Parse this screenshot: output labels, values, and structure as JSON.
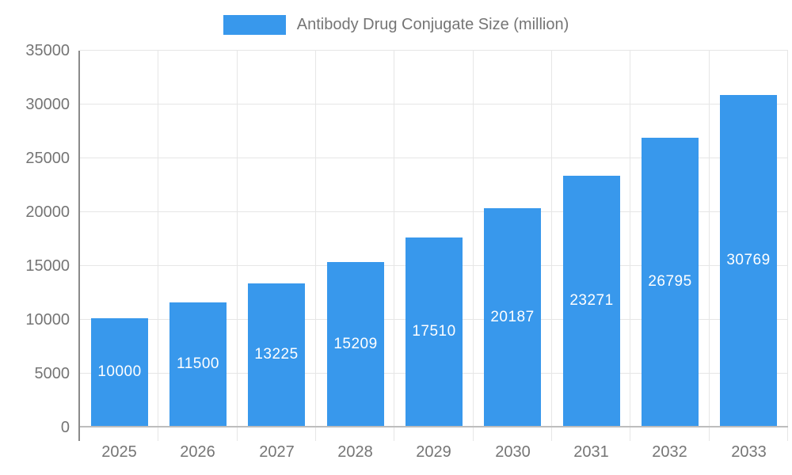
{
  "chart_data": {
    "type": "bar",
    "title": "Antibody Drug Conjugate Size (million)",
    "categories": [
      "2025",
      "2026",
      "2027",
      "2028",
      "2029",
      "2030",
      "2031",
      "2032",
      "2033"
    ],
    "values": [
      10000,
      11500,
      13225,
      15209,
      17510,
      20187,
      23271,
      26795,
      30769
    ],
    "series": [
      {
        "name": "Antibody Drug Conjugate Size (million)",
        "values": [
          10000,
          11500,
          13225,
          15209,
          17510,
          20187,
          23271,
          26795,
          30769
        ]
      }
    ],
    "xlabel": "",
    "ylabel": "",
    "ylim": [
      0,
      35000
    ],
    "yticks": [
      0,
      5000,
      10000,
      15000,
      20000,
      25000,
      30000,
      35000
    ],
    "grid": true,
    "legend_position": "top-center",
    "bar_value_labels": "inside-center",
    "colors": {
      "bar": "#3898EC",
      "bar_label": "#FFFFFF",
      "axis_text": "#757575",
      "gridline": "#E6E6E6",
      "y_axis_line": "#8A8A8A",
      "baseline": "#BDBDBD"
    }
  }
}
